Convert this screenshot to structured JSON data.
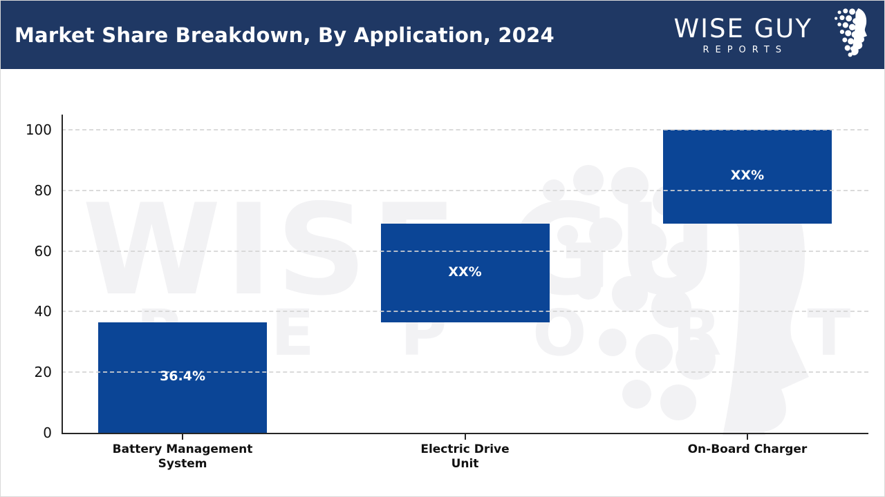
{
  "header": {
    "title": "Market Share Breakdown, By Application, 2024",
    "bg_color": "#1f3864",
    "logo": {
      "line1": "WISE GUY",
      "line2": "REPORTS"
    }
  },
  "watermark": {
    "line1": "WISE GUY",
    "line2": "R E P O R T S"
  },
  "chart_data": {
    "type": "bar",
    "subtype": "waterfall-floating-bars",
    "title": "Market Share Breakdown, By Application, 2024",
    "categories": [
      "Battery Management\nSystem",
      "Electric Drive\nUnit",
      "On-Board Charger"
    ],
    "segments": [
      {
        "category": "Battery Management System",
        "start": 0,
        "end": 36.4,
        "label": "36.4%"
      },
      {
        "category": "Electric Drive Unit",
        "start": 36.4,
        "end": 69,
        "label": "XX%"
      },
      {
        "category": "On-Board Charger",
        "start": 69,
        "end": 100,
        "label": "XX%"
      }
    ],
    "yticks": [
      0,
      20,
      40,
      60,
      80,
      100
    ],
    "ylim": [
      0,
      105
    ],
    "xlabel": "",
    "ylabel": "",
    "grid": true,
    "legend": "none",
    "bar_color": "#0b4596",
    "bar_label_color": "#ffffff",
    "gridline_color": "#d4d4d4",
    "axis_color": "#262626"
  }
}
